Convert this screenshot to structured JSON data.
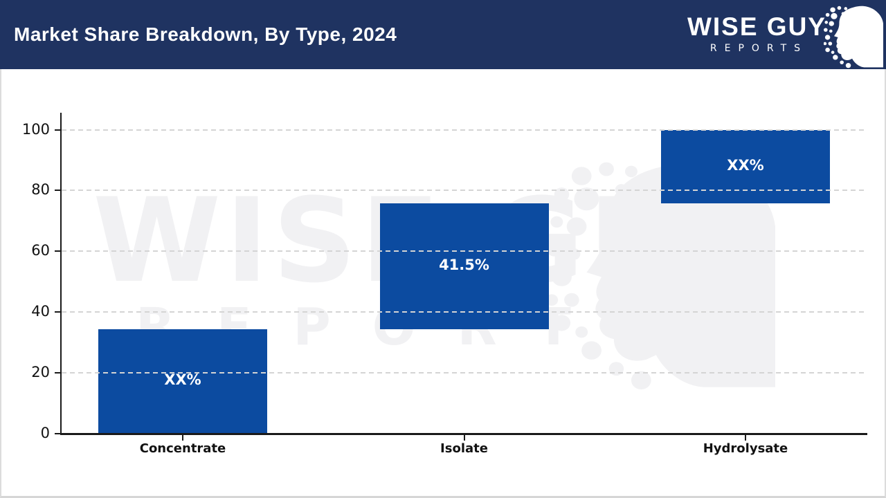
{
  "header": {
    "title": "Market Share Breakdown, By Type, 2024",
    "logo_line1": "WISE GUY",
    "logo_line2": "REPORTS",
    "bg_color": "#1f3361"
  },
  "watermark": {
    "line1": "WISE GUY",
    "line2": "REPORTS"
  },
  "chart_data": {
    "type": "bar",
    "subtype": "waterfall-floating-bars",
    "title": "Market Share Breakdown, By Type, 2024",
    "categories": [
      "Concentrate",
      "Isolate",
      "Hydrolysate"
    ],
    "series": [
      {
        "name": "Market Share",
        "starts": [
          0,
          34.2,
          75.7
        ],
        "ends": [
          34.2,
          75.7,
          100
        ],
        "heights": [
          34.2,
          41.5,
          24.3
        ]
      }
    ],
    "bar_labels": [
      "XX%",
      "41.5%",
      "XX%"
    ],
    "bar_color": "#0c4ba0",
    "label_color": "#ffffff",
    "xlabel": "",
    "ylabel": "",
    "yticks": [
      0,
      20,
      40,
      60,
      80,
      100
    ],
    "ylim": [
      0,
      105.5
    ],
    "grid": "horizontal-dashed",
    "grid_color": "#d4d4d4",
    "legend": "none"
  }
}
